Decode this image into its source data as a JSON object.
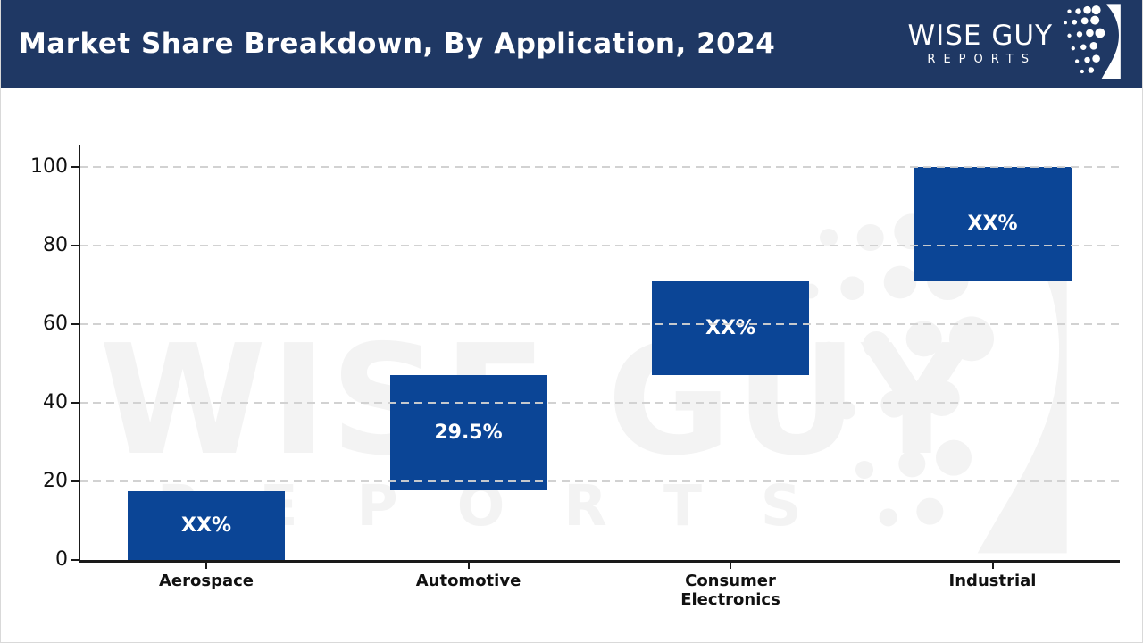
{
  "header": {
    "title": "Market Share Breakdown, By Application, 2024",
    "logo": {
      "line1": "WISE GUY",
      "line2": "REPORTS"
    }
  },
  "watermark": {
    "line1": "WISE GUY",
    "line2": "REPORTS"
  },
  "chart_data": {
    "type": "bar",
    "subtype": "floating-segment-breakdown",
    "title": "Market Share Breakdown, By Application, 2024",
    "categories": [
      "Aerospace",
      "Automotive",
      "Consumer Electronics",
      "Industrial"
    ],
    "segments": [
      {
        "category": "Aerospace",
        "start": 0,
        "end": 17.5,
        "label": "XX%"
      },
      {
        "category": "Automotive",
        "start": 17.5,
        "end": 47,
        "label": "29.5%"
      },
      {
        "category": "Consumer Electronics",
        "start": 47,
        "end": 70.8,
        "label": "XX%"
      },
      {
        "category": "Industrial",
        "start": 70.8,
        "end": 100,
        "label": "XX%"
      }
    ],
    "xlabel": "",
    "ylabel": "",
    "ylim": [
      0,
      100
    ],
    "yticks": [
      0,
      20,
      40,
      60,
      80,
      100
    ],
    "grid": "horizontal-dashed",
    "legend": "none",
    "colors": {
      "bar": "#0B4596",
      "header_bg": "#1F3864",
      "grid": "#D0D0D0",
      "axis": "#1A1A1A",
      "bar_label": "#FFFFFF",
      "watermark": "#F3F3F3"
    }
  }
}
